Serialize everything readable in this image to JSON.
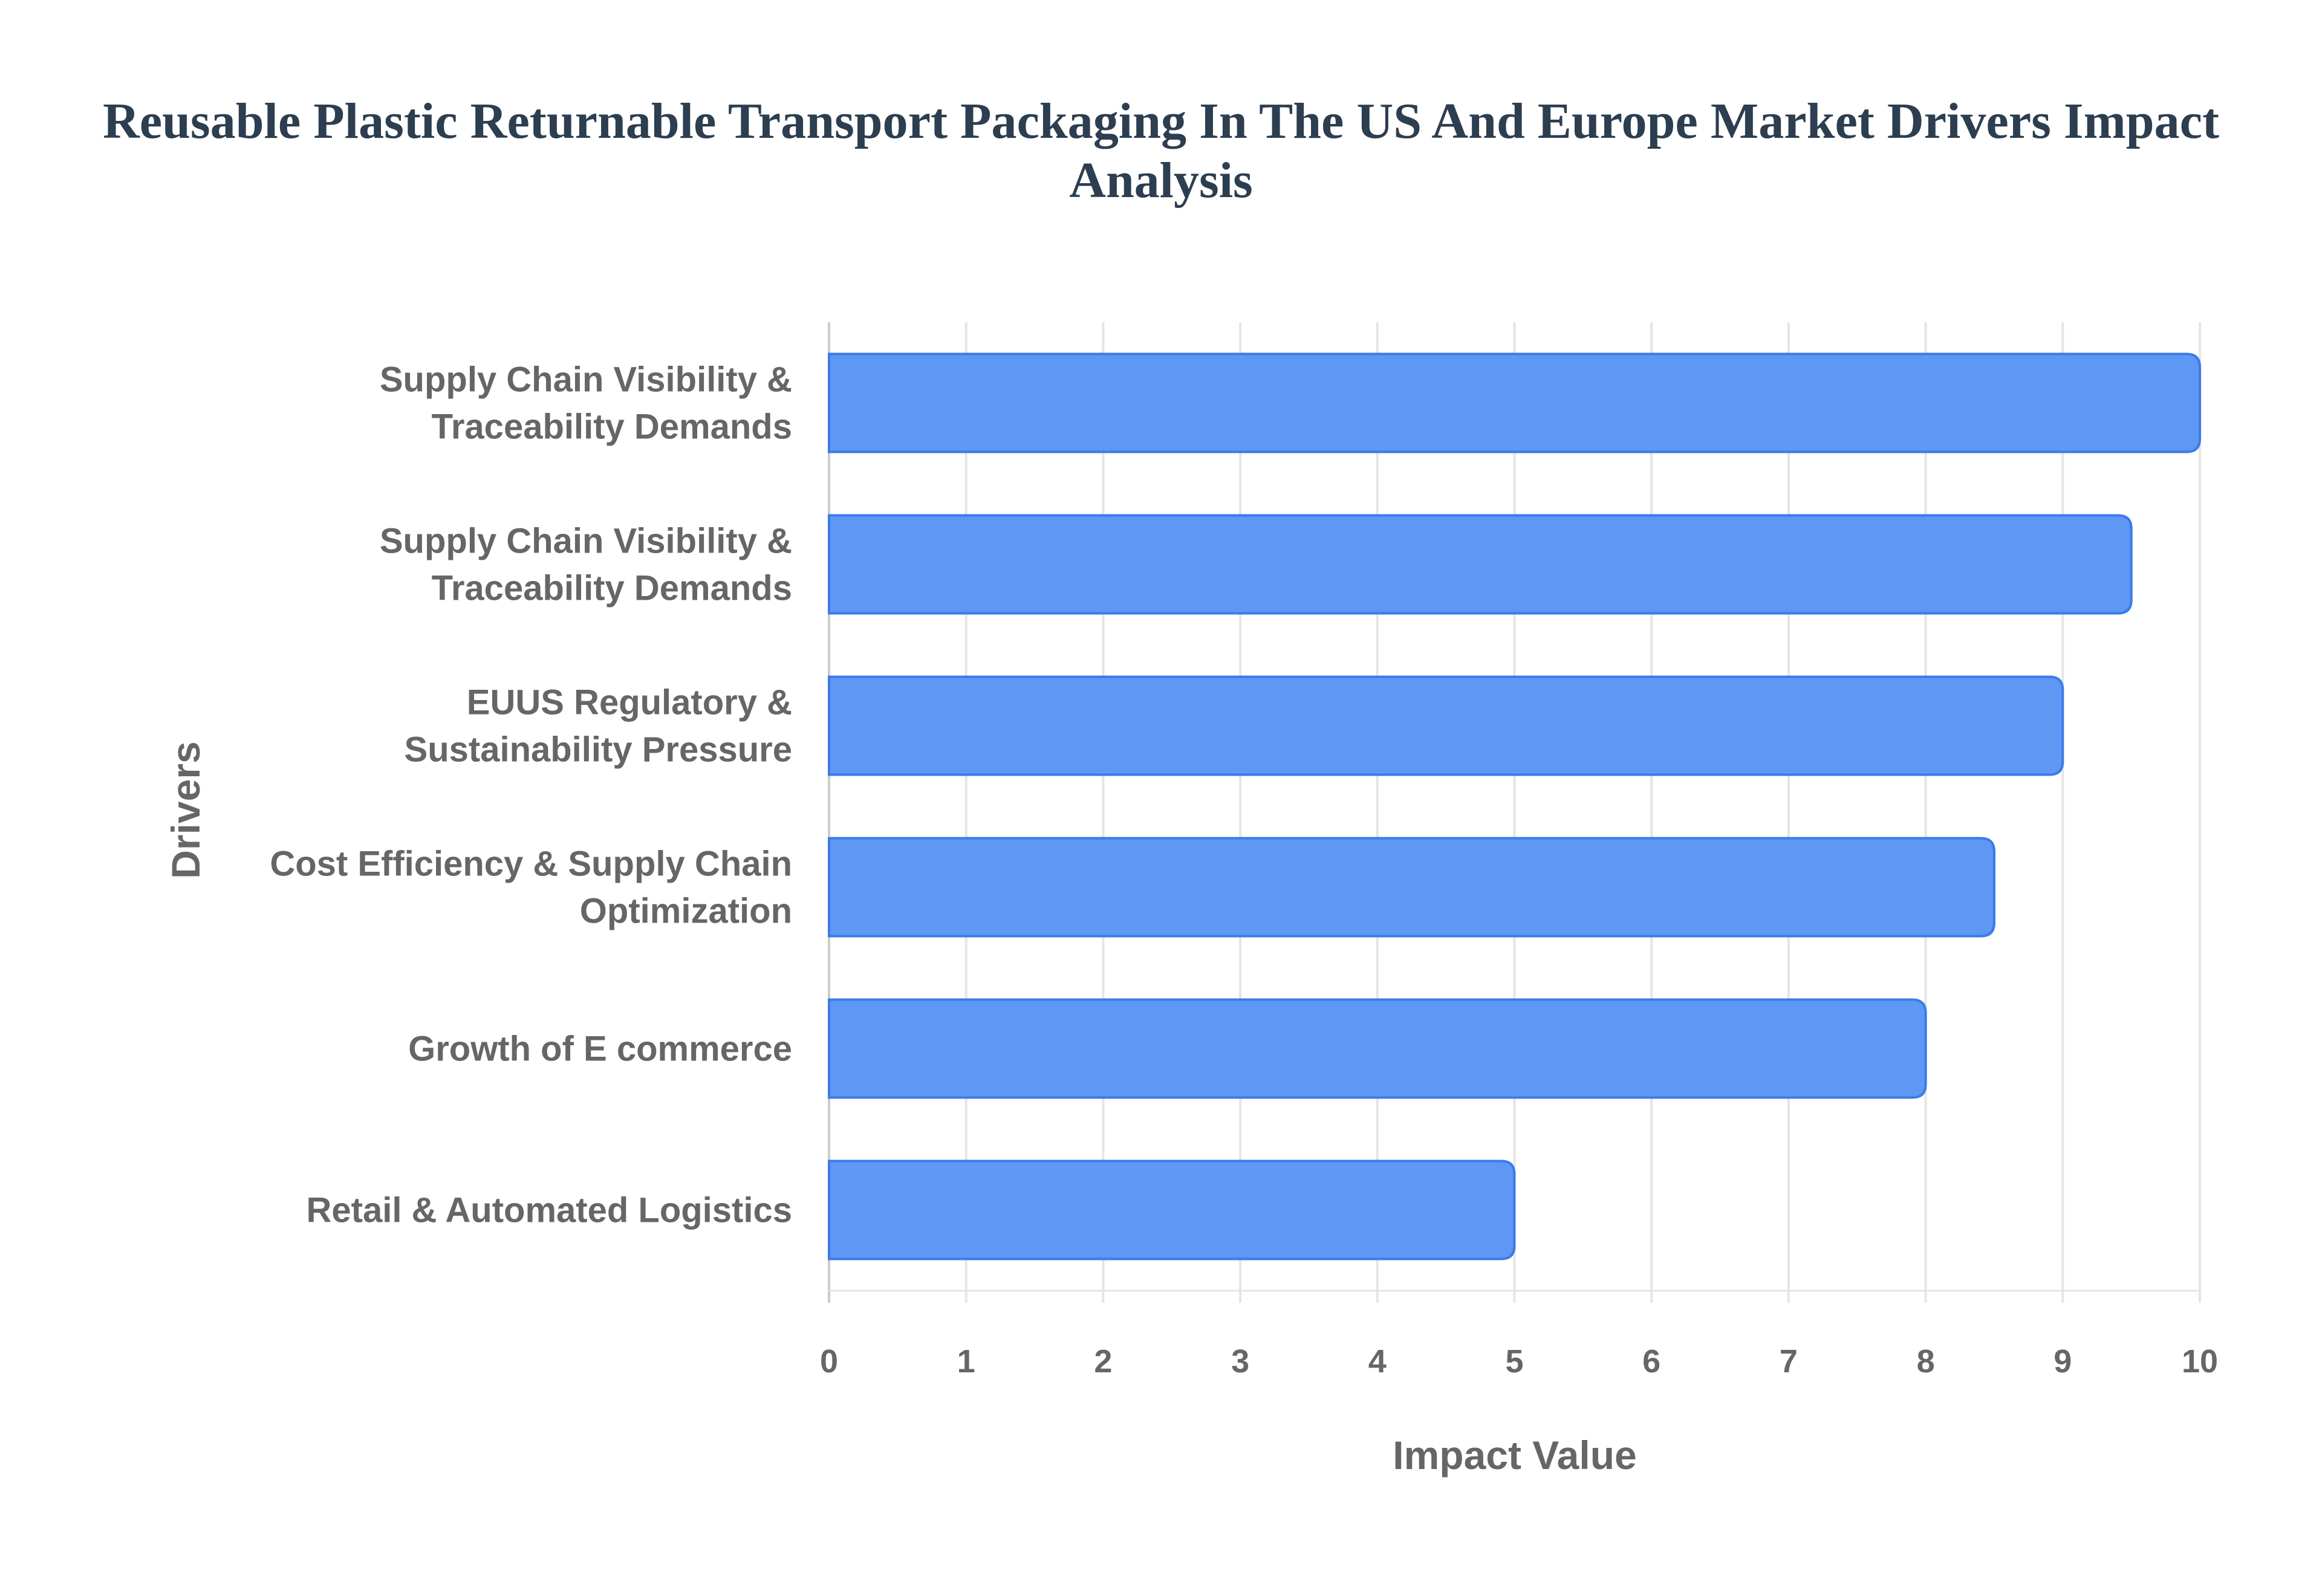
{
  "chart_data": {
    "type": "bar",
    "orientation": "horizontal",
    "title_lines": [
      "Reusable Plastic Returnable Transport Packaging In The US And Europe Market Drivers Impact",
      "Analysis"
    ],
    "title": "Reusable Plastic Returnable Transport Packaging In The US And Europe Market Drivers Impact Analysis",
    "xlabel": "Impact Value",
    "ylabel": "Drivers",
    "categories": [
      [
        "Supply Chain Visibility &",
        "Traceability Demands"
      ],
      [
        "Supply Chain Visibility &",
        "Traceability Demands"
      ],
      [
        "EUUS Regulatory &",
        "Sustainability Pressure"
      ],
      [
        "Cost Efficiency & Supply Chain",
        "Optimization"
      ],
      [
        "Growth of E commerce"
      ],
      [
        "Retail & Automated Logistics"
      ]
    ],
    "values": [
      10,
      9.5,
      9,
      8.5,
      8,
      5
    ],
    "xlim": [
      0,
      10
    ],
    "xticks": [
      "0",
      "1",
      "2",
      "3",
      "4",
      "5",
      "6",
      "7",
      "8",
      "9",
      "10"
    ],
    "grid": true,
    "colors": {
      "bar_fill": "#5f97f5",
      "bar_border": "#3b7be8",
      "grid": "#e5e5e5",
      "title": "#2c3e50",
      "text": "#666666"
    }
  }
}
